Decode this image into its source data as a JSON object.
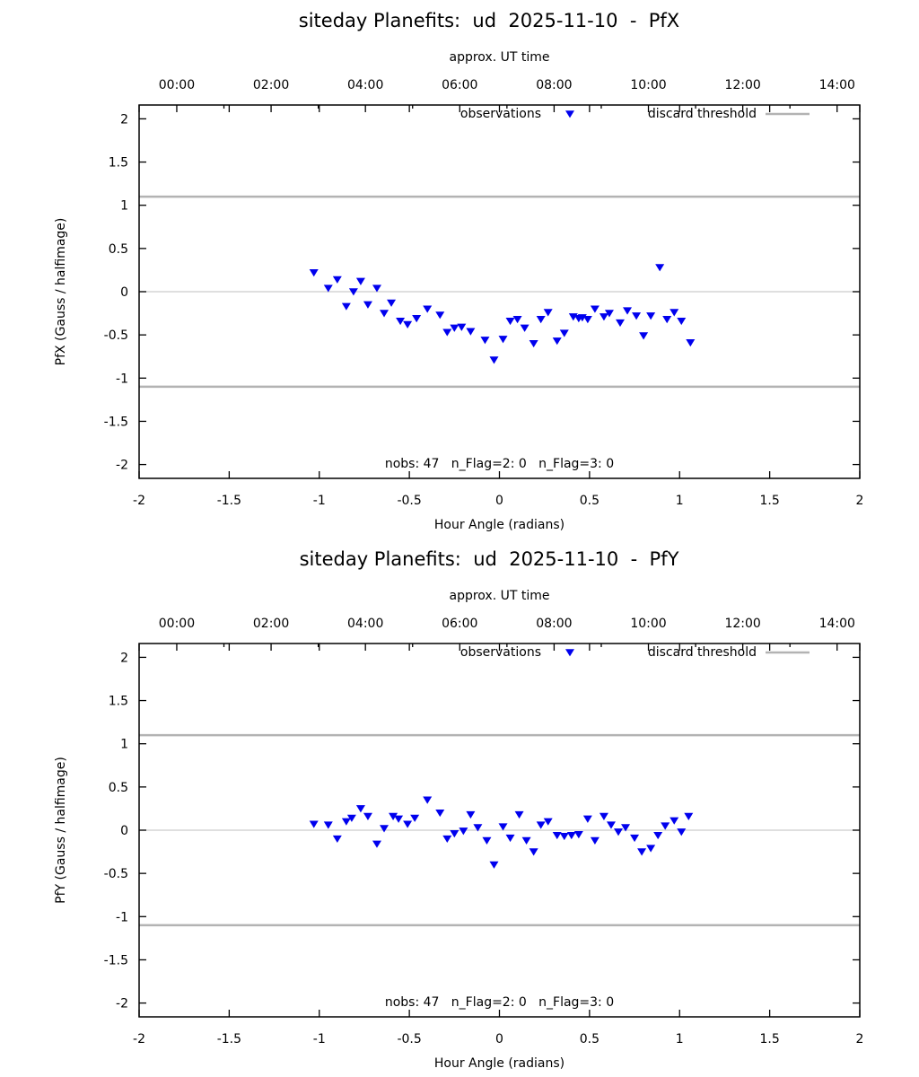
{
  "page": {
    "background": "#ffffff"
  },
  "chart_data": [
    {
      "type": "scatter",
      "title": "siteday Planefits:  ud  2025-11-10  -  PfX",
      "xlabel": "Hour Angle (radians)",
      "ylabel": "PfX (Gauss / halfimage)",
      "x2_axis": {
        "label": "approx. UT time",
        "major_hours": [
          0,
          2,
          4,
          6,
          8,
          10,
          12,
          14
        ],
        "major_labels": [
          "00:00",
          "02:00",
          "04:00",
          "06:00",
          "08:00",
          "10:00",
          "12:00",
          "14:00"
        ],
        "minor_hours": [
          1,
          3,
          5,
          7,
          9,
          11,
          13
        ],
        "ha_at_ut0": -1.791,
        "rad_per_hour": 0.2618
      },
      "xlim": [
        -2,
        2
      ],
      "ylim": [
        -2.16,
        2.16
      ],
      "x_ticks": [
        -2,
        -1.5,
        -1,
        -0.5,
        0,
        0.5,
        1,
        1.5,
        2
      ],
      "x_tick_labels": [
        "-2",
        "-1.5",
        "-1",
        "-0.5",
        "0",
        "0.5",
        "1",
        "1.5",
        "2"
      ],
      "y_ticks": [
        2,
        1.5,
        1,
        0.5,
        0,
        -0.5,
        -1,
        -1.5,
        -2
      ],
      "y_tick_labels": [
        "2",
        "1.5",
        "1",
        "0.5",
        "0",
        "-0.5",
        "-1",
        "-1.5",
        "-2"
      ],
      "grid": "zero-line-only",
      "zero_line": 0,
      "discard_thresholds": [
        1.1,
        -1.1
      ],
      "legend": {
        "observations_label": "observations",
        "threshold_label": "discard threshold",
        "position": "top-right-inside"
      },
      "annotation": "nobs: 47   n_Flag=2: 0   n_Flag=3: 0",
      "stats": {
        "nobs": 47,
        "n_flag2": 0,
        "n_flag3": 0
      },
      "marker": {
        "shape": "triangle-down",
        "color": "#0000ee"
      },
      "line_colors": {
        "threshold": "#b3b3b3",
        "zero": "#cccccc"
      },
      "points": [
        [
          -1.03,
          0.22
        ],
        [
          -0.95,
          0.04
        ],
        [
          -0.9,
          0.14
        ],
        [
          -0.85,
          -0.17
        ],
        [
          -0.81,
          0.0
        ],
        [
          -0.77,
          0.12
        ],
        [
          -0.73,
          -0.15
        ],
        [
          -0.68,
          0.04
        ],
        [
          -0.64,
          -0.25
        ],
        [
          -0.6,
          -0.13
        ],
        [
          -0.55,
          -0.34
        ],
        [
          -0.51,
          -0.38
        ],
        [
          -0.46,
          -0.31
        ],
        [
          -0.4,
          -0.2
        ],
        [
          -0.33,
          -0.27
        ],
        [
          -0.29,
          -0.47
        ],
        [
          -0.25,
          -0.42
        ],
        [
          -0.21,
          -0.41
        ],
        [
          -0.16,
          -0.46
        ],
        [
          -0.08,
          -0.56
        ],
        [
          -0.03,
          -0.79
        ],
        [
          0.02,
          -0.55
        ],
        [
          0.06,
          -0.34
        ],
        [
          0.1,
          -0.32
        ],
        [
          0.14,
          -0.42
        ],
        [
          0.19,
          -0.6
        ],
        [
          0.23,
          -0.32
        ],
        [
          0.27,
          -0.24
        ],
        [
          0.32,
          -0.57
        ],
        [
          0.36,
          -0.48
        ],
        [
          0.41,
          -0.29
        ],
        [
          0.44,
          -0.31
        ],
        [
          0.46,
          -0.3
        ],
        [
          0.49,
          -0.32
        ],
        [
          0.53,
          -0.2
        ],
        [
          0.58,
          -0.29
        ],
        [
          0.61,
          -0.25
        ],
        [
          0.67,
          -0.36
        ],
        [
          0.71,
          -0.22
        ],
        [
          0.76,
          -0.28
        ],
        [
          0.8,
          -0.51
        ],
        [
          0.84,
          -0.28
        ],
        [
          0.89,
          0.28
        ],
        [
          0.93,
          -0.32
        ],
        [
          0.97,
          -0.24
        ],
        [
          1.01,
          -0.34
        ],
        [
          1.06,
          -0.59
        ]
      ]
    },
    {
      "type": "scatter",
      "title": "siteday Planefits:  ud  2025-11-10  -  PfY",
      "xlabel": "Hour Angle (radians)",
      "ylabel": "PfY (Gauss / halfimage)",
      "x2_axis": {
        "label": "approx. UT time",
        "major_hours": [
          0,
          2,
          4,
          6,
          8,
          10,
          12,
          14
        ],
        "major_labels": [
          "00:00",
          "02:00",
          "04:00",
          "06:00",
          "08:00",
          "10:00",
          "12:00",
          "14:00"
        ],
        "minor_hours": [
          1,
          3,
          5,
          7,
          9,
          11,
          13
        ],
        "ha_at_ut0": -1.791,
        "rad_per_hour": 0.2618
      },
      "xlim": [
        -2,
        2
      ],
      "ylim": [
        -2.16,
        2.16
      ],
      "x_ticks": [
        -2,
        -1.5,
        -1,
        -0.5,
        0,
        0.5,
        1,
        1.5,
        2
      ],
      "x_tick_labels": [
        "-2",
        "-1.5",
        "-1",
        "-0.5",
        "0",
        "0.5",
        "1",
        "1.5",
        "2"
      ],
      "y_ticks": [
        2,
        1.5,
        1,
        0.5,
        0,
        -0.5,
        -1,
        -1.5,
        -2
      ],
      "y_tick_labels": [
        "2",
        "1.5",
        "1",
        "0.5",
        "0",
        "-0.5",
        "-1",
        "-1.5",
        "-2"
      ],
      "grid": "zero-line-only",
      "zero_line": 0,
      "discard_thresholds": [
        1.1,
        -1.1
      ],
      "legend": {
        "observations_label": "observations",
        "threshold_label": "discard threshold",
        "position": "top-right-inside"
      },
      "annotation": "nobs: 47   n_Flag=2: 0   n_Flag=3: 0",
      "stats": {
        "nobs": 47,
        "n_flag2": 0,
        "n_flag3": 0
      },
      "marker": {
        "shape": "triangle-down",
        "color": "#0000ee"
      },
      "line_colors": {
        "threshold": "#b3b3b3",
        "zero": "#cccccc"
      },
      "points": [
        [
          -1.03,
          0.07
        ],
        [
          -0.95,
          0.06
        ],
        [
          -0.9,
          -0.1
        ],
        [
          -0.85,
          0.1
        ],
        [
          -0.82,
          0.14
        ],
        [
          -0.77,
          0.25
        ],
        [
          -0.73,
          0.16
        ],
        [
          -0.68,
          -0.16
        ],
        [
          -0.64,
          0.02
        ],
        [
          -0.59,
          0.16
        ],
        [
          -0.56,
          0.13
        ],
        [
          -0.51,
          0.07
        ],
        [
          -0.47,
          0.14
        ],
        [
          -0.4,
          0.35
        ],
        [
          -0.33,
          0.2
        ],
        [
          -0.29,
          -0.1
        ],
        [
          -0.25,
          -0.04
        ],
        [
          -0.2,
          -0.01
        ],
        [
          -0.16,
          0.18
        ],
        [
          -0.12,
          0.03
        ],
        [
          -0.07,
          -0.12
        ],
        [
          -0.03,
          -0.4
        ],
        [
          0.02,
          0.04
        ],
        [
          0.06,
          -0.09
        ],
        [
          0.11,
          0.18
        ],
        [
          0.15,
          -0.12
        ],
        [
          0.19,
          -0.25
        ],
        [
          0.23,
          0.06
        ],
        [
          0.27,
          0.1
        ],
        [
          0.32,
          -0.06
        ],
        [
          0.36,
          -0.07
        ],
        [
          0.4,
          -0.06
        ],
        [
          0.44,
          -0.05
        ],
        [
          0.49,
          0.13
        ],
        [
          0.53,
          -0.12
        ],
        [
          0.58,
          0.16
        ],
        [
          0.62,
          0.06
        ],
        [
          0.66,
          -0.02
        ],
        [
          0.7,
          0.03
        ],
        [
          0.75,
          -0.09
        ],
        [
          0.79,
          -0.25
        ],
        [
          0.84,
          -0.21
        ],
        [
          0.88,
          -0.06
        ],
        [
          0.92,
          0.05
        ],
        [
          0.97,
          0.11
        ],
        [
          1.01,
          -0.02
        ],
        [
          1.05,
          0.16
        ]
      ]
    }
  ]
}
